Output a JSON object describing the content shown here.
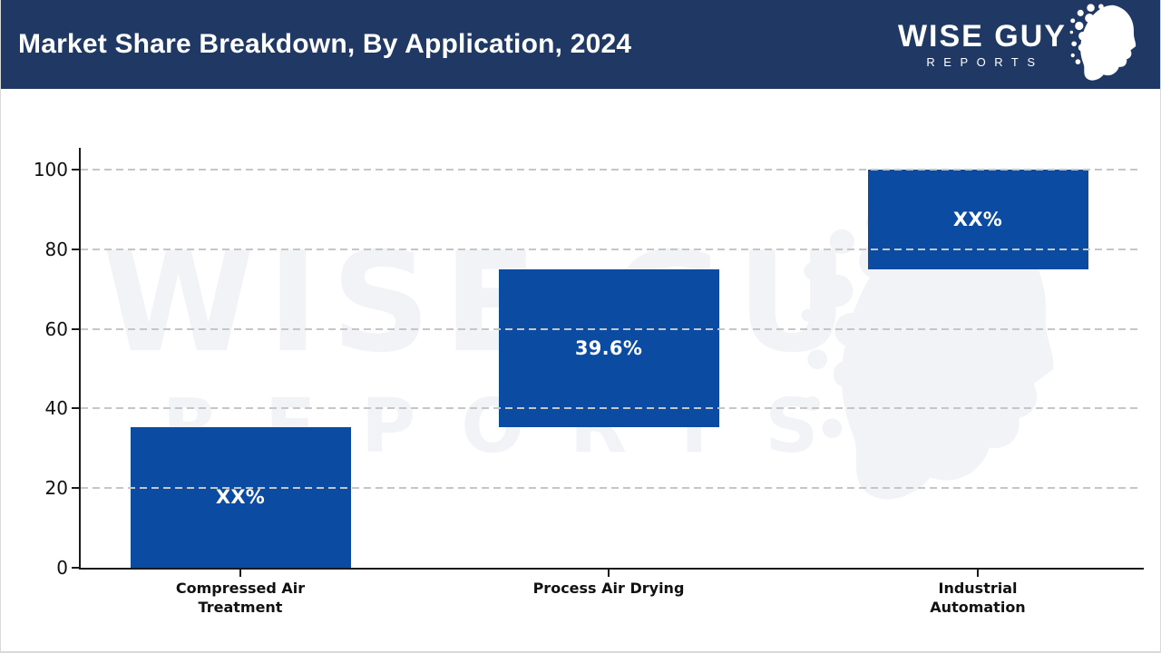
{
  "header": {
    "title": "Market Share Breakdown, By Application, 2024",
    "logo": {
      "name": "WISE GUY",
      "sub": "REPORTS"
    }
  },
  "watermark": {
    "name": "WISE GUY",
    "sub": "REPORTS"
  },
  "chart_data": {
    "type": "bar",
    "subtype": "floating-waterfall",
    "title": "Market Share Breakdown, By Application, 2024",
    "categories": [
      "Compressed Air Treatment",
      "Process Air Drying",
      "Industrial Automation"
    ],
    "bars": [
      {
        "category_lines": [
          "Compressed Air",
          "Treatment"
        ],
        "start": 0,
        "end": 35.4,
        "label": "XX%"
      },
      {
        "category_lines": [
          "Process Air Drying"
        ],
        "start": 35.4,
        "end": 75,
        "label": "39.6%"
      },
      {
        "category_lines": [
          "Industrial",
          "Automation"
        ],
        "start": 75,
        "end": 100,
        "label": "XX%"
      }
    ],
    "yticks": [
      0,
      20,
      40,
      60,
      80,
      100
    ],
    "ylim": [
      0,
      105
    ],
    "grid": "horizontal-dashed, drawn over bars",
    "legend": "none",
    "colors": {
      "bar": "#0b4ba1",
      "bar_label": "#ffffff",
      "header_bg": "#1f3864",
      "header_text": "#ffffff",
      "gridline": "#c6c6c6",
      "axis": "#1a1a1a",
      "watermark": "#f2f3f6"
    }
  }
}
